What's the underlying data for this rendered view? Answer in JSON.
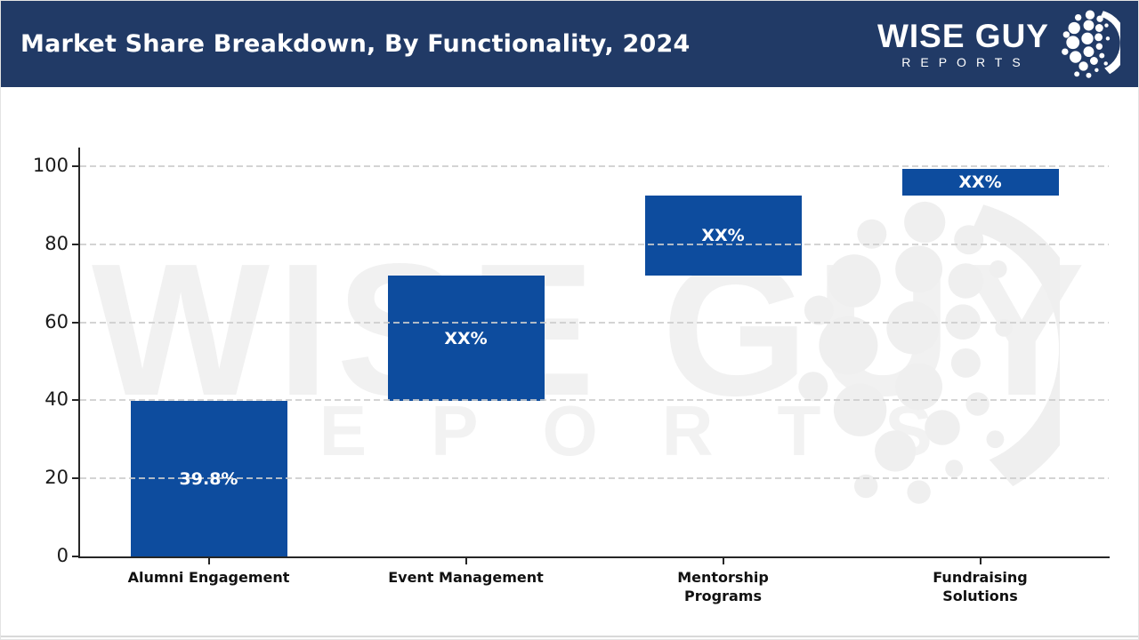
{
  "header": {
    "title": "Market Share Breakdown, By Functionality, 2024",
    "logo": {
      "line1": "WISE GUY",
      "line2": "REPORTS"
    }
  },
  "watermark": {
    "line1": "WISE GUY",
    "line2": "REPORTS"
  },
  "colors": {
    "header_bg": "#213a66",
    "bar": "#0d4c9e",
    "bar_label": "#ffffff",
    "axis": "#262626",
    "grid": "#d4d4d4",
    "tick_text": "#1a1a1a",
    "category_text": "#111111",
    "watermark": "#f1f1f1",
    "logo_text": "#ffffff"
  },
  "chart_data": {
    "type": "bar",
    "subtype": "waterfall",
    "title": "Market Share Breakdown, By Functionality, 2024",
    "categories": [
      "Alumni Engagement",
      "Event Management",
      "Mentorship Programs",
      "Fundraising Solutions"
    ],
    "category_lines": [
      [
        "Alumni Engagement"
      ],
      [
        "Event Management"
      ],
      [
        "Mentorship",
        "Programs"
      ],
      [
        "Fundraising",
        "Solutions"
      ]
    ],
    "series": [
      {
        "name": "Market share (%)",
        "segments": [
          {
            "category": "Alumni Engagement",
            "start": 0,
            "end": 39.8,
            "label": "39.8%"
          },
          {
            "category": "Event Management",
            "start": 39.8,
            "end": 72,
            "label": "XX%"
          },
          {
            "category": "Mentorship Programs",
            "start": 72,
            "end": 92.4,
            "label": "XX%"
          },
          {
            "category": "Fundraising Solutions",
            "start": 92.4,
            "end": 99.4,
            "label": "XX%"
          }
        ]
      }
    ],
    "bar_labels": [
      "39.8%",
      "XX%",
      "XX%",
      "XX%"
    ],
    "xlabel": "",
    "ylabel": "",
    "ylim": [
      0,
      100
    ],
    "yticks": [
      0,
      20,
      40,
      60,
      80,
      100
    ],
    "grid": "horizontal-dashed",
    "legend": "none"
  }
}
